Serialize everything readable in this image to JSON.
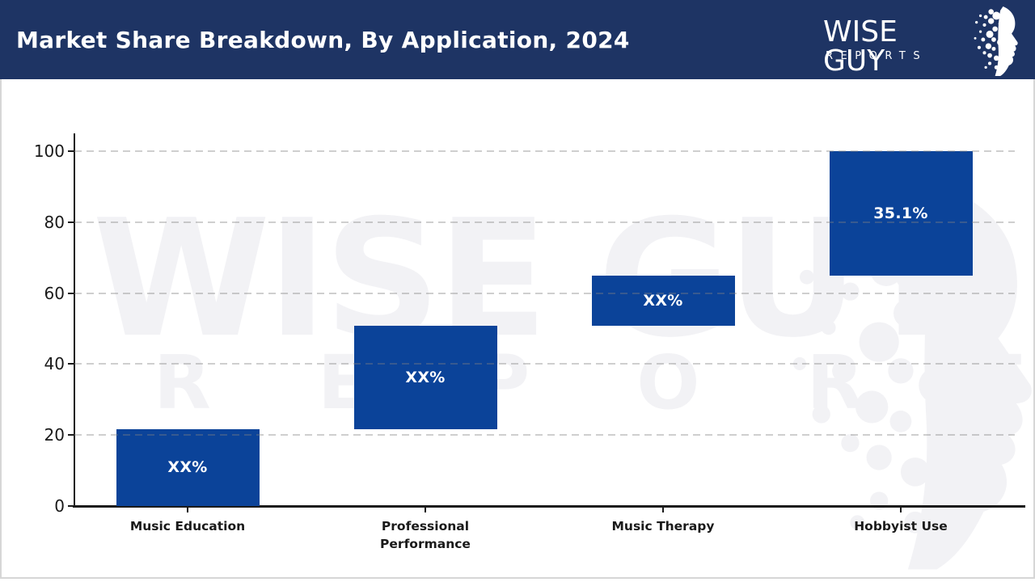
{
  "header": {
    "title": "Market Share Breakdown, By Application, 2024",
    "logo": {
      "word1": "WISE GUY",
      "word2": "REPORTS"
    }
  },
  "watermark": {
    "word1": "WISE GUY",
    "word2": "R E P O R T S"
  },
  "colors": {
    "header_bg": "#1e3464",
    "title_text": "#ffffff",
    "bar": "#0b4399",
    "bar_label": "#ffffff",
    "axis": "#1a1a1a",
    "tick_label": "#1a1a1a",
    "grid": "rgba(128,128,128,0.38)",
    "watermark": "#f2f2f5",
    "border": "#d6d6d6"
  },
  "chart_data": {
    "type": "bar",
    "variant": "floating-waterfall",
    "title": "Market Share Breakdown, By Application, 2024",
    "xlabel": "",
    "ylabel": "",
    "ylim": [
      0,
      105
    ],
    "yticks": [
      0,
      20,
      40,
      60,
      80,
      100
    ],
    "grid": "horizontal-dashed",
    "legend": "none",
    "categories": [
      "Music Education",
      "Professional Performance",
      "Music Therapy",
      "Hobbyist Use"
    ],
    "segments": [
      {
        "category": "Music Education",
        "start": 0,
        "end": 21.7,
        "label": "XX%"
      },
      {
        "category": "Professional Performance",
        "start": 21.7,
        "end": 50.7,
        "label": "XX%"
      },
      {
        "category": "Music Therapy",
        "start": 50.7,
        "end": 64.9,
        "label": "XX%"
      },
      {
        "category": "Hobbyist Use",
        "start": 64.9,
        "end": 100,
        "label": "35.1%"
      }
    ]
  }
}
